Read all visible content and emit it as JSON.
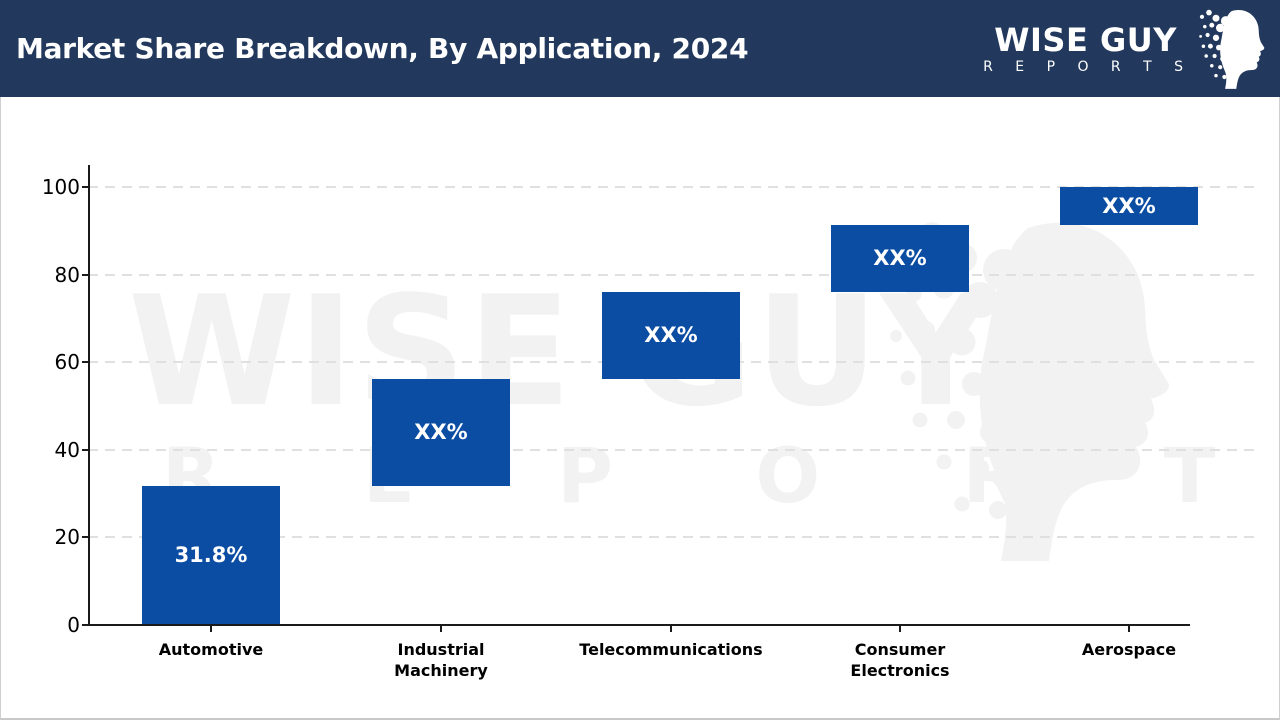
{
  "header": {
    "title": "Market Share Breakdown, By Application, 2024",
    "logo": {
      "wordmark": "WISE GUY",
      "subtitle": "R E P O R T S"
    }
  },
  "watermark": {
    "wordmark": "WISE GUY",
    "subtitle": "R E P O R T S"
  },
  "chart_data": {
    "type": "bar",
    "subtype": "waterfall",
    "title": "Market Share Breakdown, By Application, 2024",
    "categories": [
      {
        "name": "Automotive",
        "lines": [
          "Automotive"
        ]
      },
      {
        "name": "Industrial Machinery",
        "lines": [
          "Industrial",
          "Machinery"
        ]
      },
      {
        "name": "Telecommunications",
        "lines": [
          "Telecommunications"
        ]
      },
      {
        "name": "Consumer Electronics",
        "lines": [
          "Consumer",
          "Electronics"
        ]
      },
      {
        "name": "Aerospace",
        "lines": [
          "Aerospace"
        ]
      }
    ],
    "segments": [
      {
        "category": "Automotive",
        "start": 0,
        "end": 31.8,
        "label": "31.8%"
      },
      {
        "category": "Industrial Machinery",
        "start": 31.8,
        "end": 56.1,
        "label": "XX%"
      },
      {
        "category": "Telecommunications",
        "start": 56.1,
        "end": 76.1,
        "label": "XX%"
      },
      {
        "category": "Consumer Electronics",
        "start": 76.1,
        "end": 91.3,
        "label": "XX%"
      },
      {
        "category": "Aerospace",
        "start": 91.3,
        "end": 100.0,
        "label": "XX%"
      }
    ],
    "xlabel": "",
    "ylabel": "",
    "ylim": [
      0,
      100
    ],
    "yticks": [
      0,
      20,
      40,
      60,
      80,
      100
    ],
    "grid": "horizontal-dashed",
    "legend": "none",
    "bar_color": "#0b4da2",
    "bar_label_color": "#ffffff",
    "axis_color": "#1a1a1a",
    "gridline_color": "#e0e0e0",
    "header_bg_color": "#22395d",
    "watermark_color": "#f2f2f2"
  }
}
